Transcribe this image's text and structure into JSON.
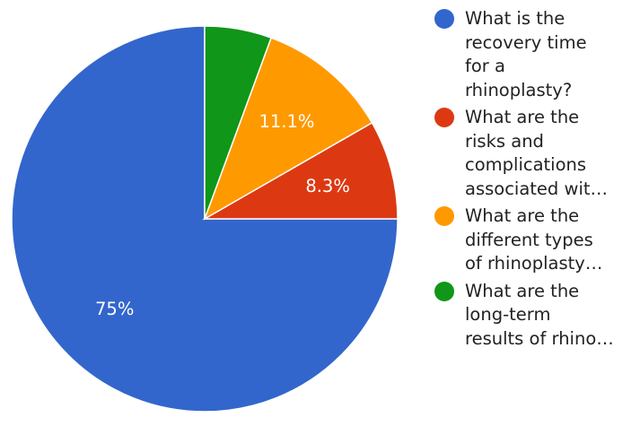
{
  "chart_data": {
    "type": "pie",
    "slices": [
      {
        "label": "What is the recovery time for a rhinoplasty?",
        "label_lines": [
          "What is the",
          "recovery time",
          "for a",
          "rhinoplasty?"
        ],
        "value": 75,
        "display": "75%",
        "color": "#3366CC"
      },
      {
        "label": "What are the risks and complications associated wit…",
        "label_lines": [
          "What are the",
          "risks and",
          "complications",
          "associated wit…"
        ],
        "value": 8.3,
        "display": "8.3%",
        "color": "#DC3912"
      },
      {
        "label": "What are the different types of rhinoplasty…",
        "label_lines": [
          "What are the",
          "different types",
          "of rhinoplasty…"
        ],
        "value": 11.1,
        "display": "11.1%",
        "color": "#FF9900"
      },
      {
        "label": "What are the long-term results of rhino…",
        "label_lines": [
          "What are the",
          "long-term",
          "results of rhino…"
        ],
        "value": 5.6,
        "display": "",
        "color": "#109618"
      }
    ],
    "start_angle_deg": 0,
    "direction": "counterclockwise",
    "legend_position": "right"
  }
}
